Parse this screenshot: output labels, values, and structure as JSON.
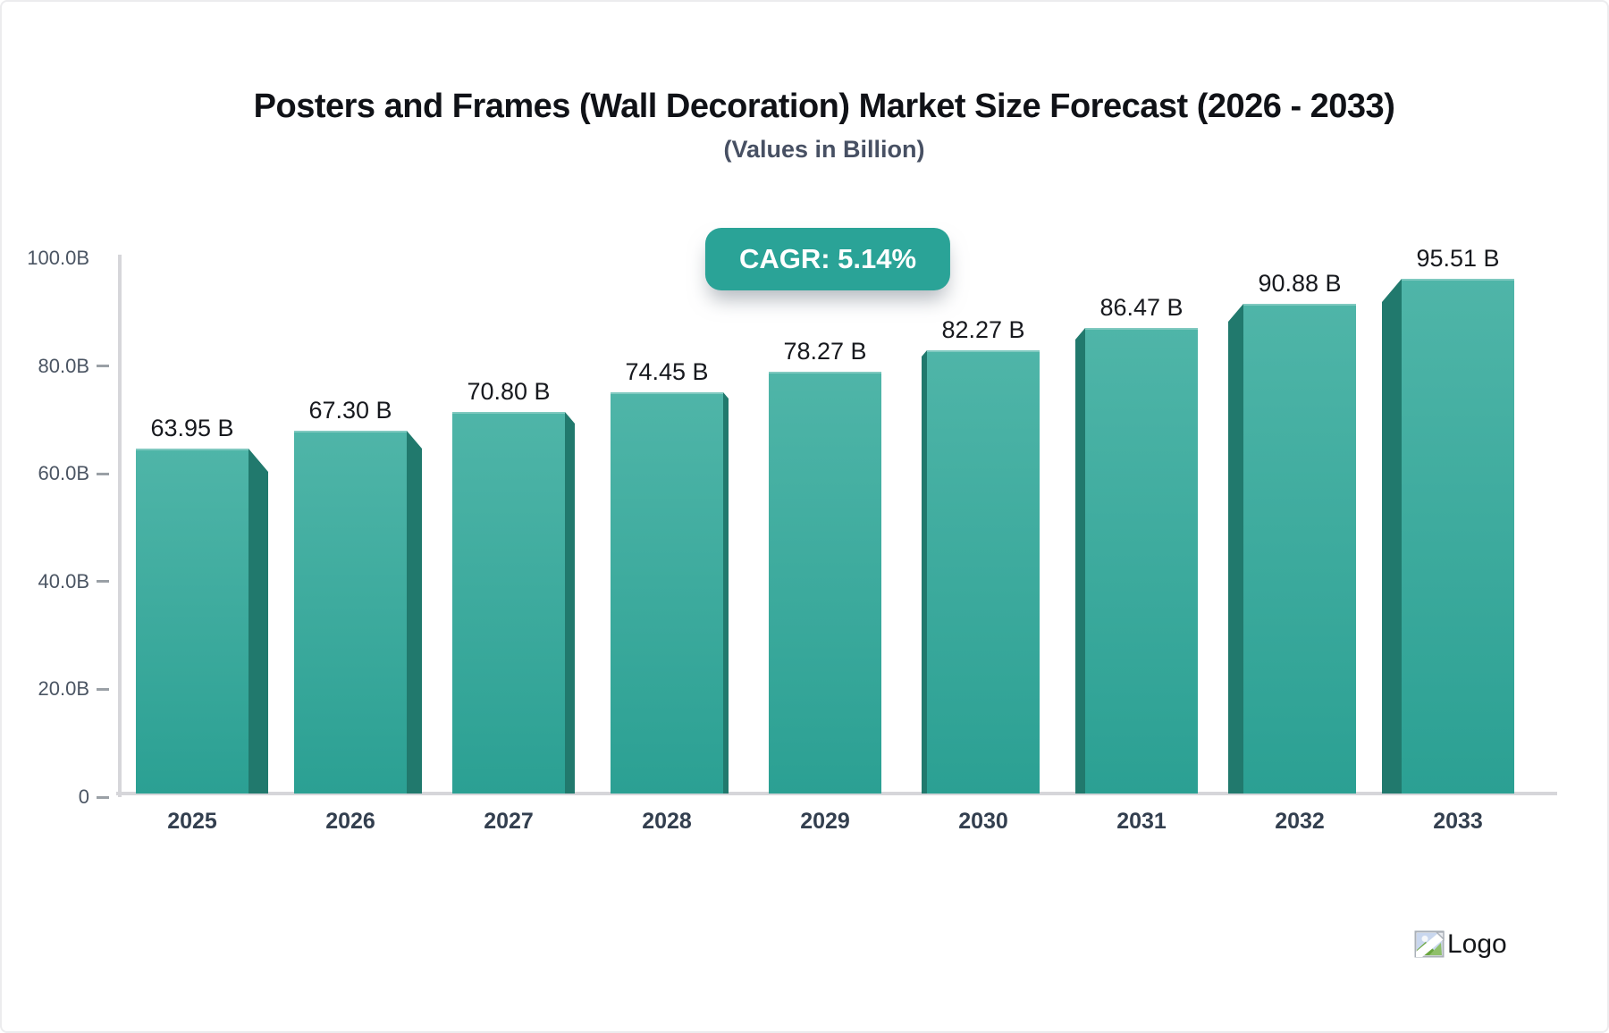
{
  "header": {
    "title": "Posters and Frames (Wall Decoration) Market Size Forecast (2026 - 2033)",
    "subtitle": "(Values in Billion)",
    "cagr_label": "CAGR: 5.14%"
  },
  "chart_data": {
    "type": "bar",
    "title": "Posters and Frames (Wall Decoration) Market Size Forecast (2026 - 2033)",
    "subtitle": "(Values in Billion)",
    "categories": [
      "2025",
      "2026",
      "2027",
      "2028",
      "2029",
      "2030",
      "2031",
      "2032",
      "2033"
    ],
    "values": [
      63.95,
      67.3,
      70.8,
      74.45,
      78.27,
      82.27,
      86.47,
      90.88,
      95.51
    ],
    "bar_labels": [
      "63.95 B",
      "67.30 B",
      "70.80 B",
      "74.45 B",
      "78.27 B",
      "82.27 B",
      "86.47 B",
      "90.88 B",
      "95.51 B"
    ],
    "unit": "Billion",
    "xlabel": "",
    "ylabel": "",
    "ylim": [
      0,
      100
    ],
    "yticks": [
      {
        "label": "100.0B",
        "value": 100,
        "dash": false
      },
      {
        "label": "80.0B",
        "value": 80,
        "dash": true
      },
      {
        "label": "60.0B",
        "value": 60,
        "dash": true
      },
      {
        "label": "40.0B",
        "value": 40,
        "dash": true
      },
      {
        "label": "20.0B",
        "value": 20,
        "dash": true
      },
      {
        "label": "0",
        "value": 0,
        "dash": true
      }
    ],
    "grid": false,
    "legend": null,
    "annotations": [
      "CAGR: 5.14%"
    ],
    "style": "3d-perspective-bars"
  },
  "colors": {
    "bar_face_top": "#4fb5a8",
    "bar_face_bottom": "#2ba093",
    "bar_side": "#21796d",
    "badge": "#2aa397",
    "axis": "#d6d6da",
    "tick": "#9aa0a6",
    "tick_label": "#4b5563",
    "category_label": "#333f4f",
    "title": "#101217",
    "subtitle": "#475063"
  },
  "footer": {
    "logo_text": "Logo"
  }
}
